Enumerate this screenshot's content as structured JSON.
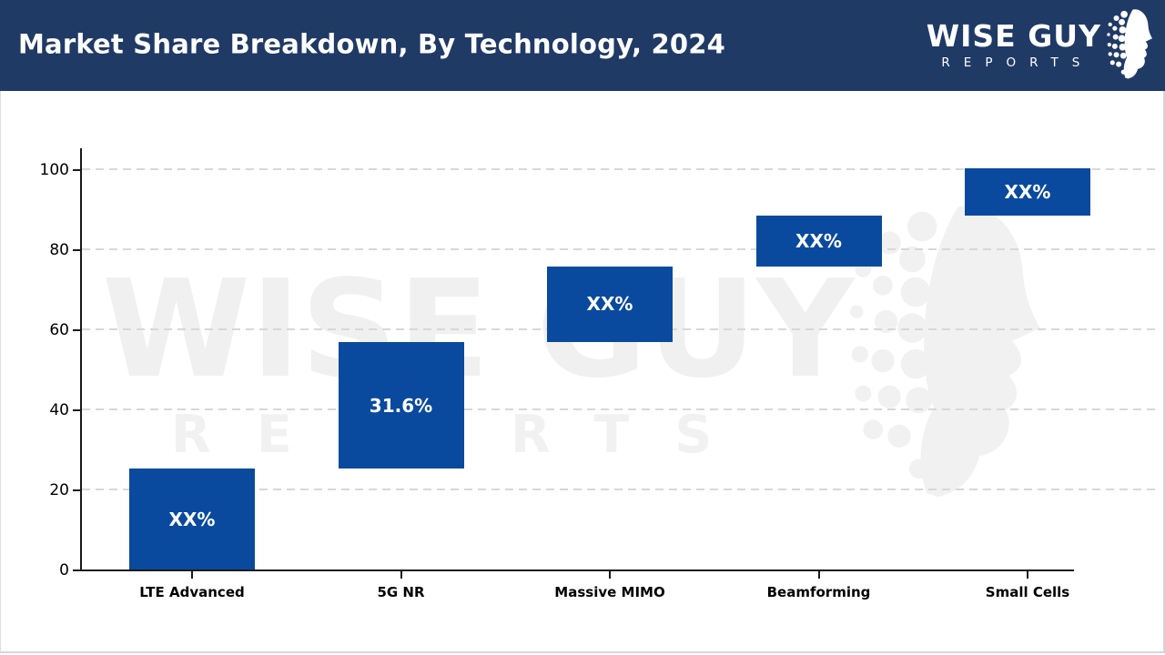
{
  "header": {
    "title": "Market Share Breakdown, By Technology, 2024",
    "logo": {
      "line1": "WISE GUY",
      "line2": "REPORTS"
    }
  },
  "watermark": {
    "line1": "WISE GUY",
    "line2": "REPORTS"
  },
  "colors": {
    "header_bg": "#203a66",
    "bar": "#0a4a9e",
    "bar_label": "#ffffff",
    "gridline": "#d8d8d8",
    "axis": "#1a1a1a",
    "watermark_text": "#f0f0f0",
    "watermark_head": "#f1f1f1"
  },
  "chart_data": {
    "type": "bar",
    "subtype": "waterfall",
    "title": "Market Share Breakdown, By Technology, 2024",
    "categories": [
      "LTE Advanced",
      "5G NR",
      "Massive MIMO",
      "Beamforming",
      "Small Cells"
    ],
    "segments": [
      {
        "category": "LTE Advanced",
        "start": 0,
        "end": 25.2,
        "label": "XX%"
      },
      {
        "category": "5G NR",
        "start": 25.2,
        "end": 56.8,
        "label": "31.6%"
      },
      {
        "category": "Massive MIMO",
        "start": 56.8,
        "end": 75.7,
        "label": "XX%"
      },
      {
        "category": "Beamforming",
        "start": 75.7,
        "end": 88.4,
        "label": "XX%"
      },
      {
        "category": "Small Cells",
        "start": 88.4,
        "end": 100.2,
        "label": "XX%"
      }
    ],
    "y_ticks": [
      0,
      20,
      40,
      60,
      80,
      100
    ],
    "ylim": [
      0,
      103.6
    ],
    "xlabel": "",
    "ylabel": "",
    "grid": "horizontal-dashed",
    "legend": "none"
  }
}
